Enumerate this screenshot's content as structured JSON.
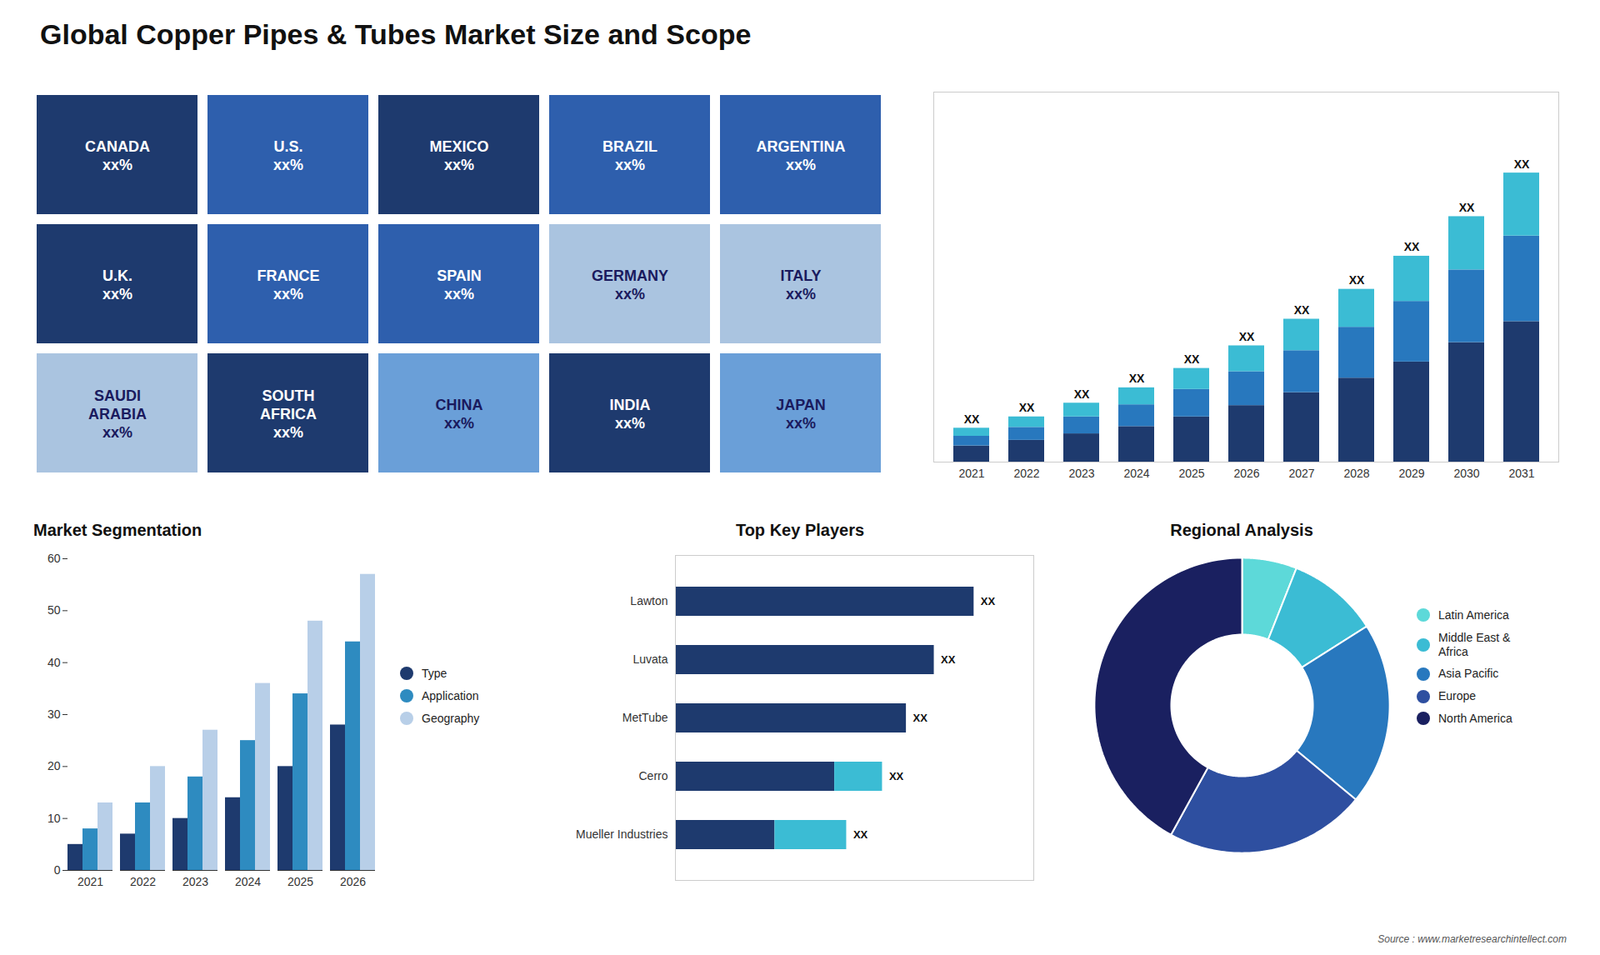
{
  "chart_data": [
    {
      "type": "map",
      "categories": [
        "CANADA\nxx%",
        "U.S.\nxx%",
        "MEXICO\nxx%",
        "BRAZIL\nxx%",
        "ARGENTINA\nxx%",
        "U.K.\nxx%",
        "FRANCE\nxx%",
        "SPAIN\nxx%",
        "GERMANY\nxx%",
        "ITALY\nxx%",
        "SAUDI\nARABIA\nxx%",
        "SOUTH\nAFRICA\nxx%",
        "CHINA\nxx%",
        "INDIA\nxx%",
        "JAPAN\nxx%"
      ],
      "colors": [
        "#1e3a6e",
        "#2e5fad",
        "#1e3a6e",
        "#2e5fad",
        "#2e5fad",
        "#1e3a6e",
        "#2e5fad",
        "#2e5fad",
        "#aac4e0",
        "#aac4e0",
        "#aac4e0",
        "#1e3a6e",
        "#6a9fd8",
        "#1e3a6e",
        "#6a9fd8"
      ]
    },
    {
      "type": "bar",
      "title": "Global Copper Pipes & Tubes Market Size and Scope",
      "stacked": true,
      "categories": [
        "2021",
        "2022",
        "2023",
        "2024",
        "2025",
        "2026",
        "2027",
        "2028",
        "2029",
        "2030",
        "2031"
      ],
      "series": [
        {
          "color": "#1e3a6e",
          "values": [
            1.0,
            1.35,
            1.75,
            2.2,
            2.8,
            3.5,
            4.3,
            5.2,
            6.2,
            7.4,
            8.7
          ]
        },
        {
          "color": "#2878be",
          "values": [
            0.6,
            0.8,
            1.05,
            1.35,
            1.7,
            2.1,
            2.6,
            3.15,
            3.75,
            4.5,
            5.3
          ]
        },
        {
          "color": "#3bbcd4",
          "values": [
            0.5,
            0.65,
            0.85,
            1.05,
            1.3,
            1.6,
            1.95,
            2.35,
            2.8,
            3.3,
            3.9
          ]
        }
      ],
      "total_labels": [
        "XX",
        "XX",
        "XX",
        "XX",
        "XX",
        "XX",
        "XX",
        "XX",
        "XX",
        "XX",
        "XX"
      ],
      "ylim": [
        0,
        22.912
      ],
      "tick_labels": "x",
      "grid": false,
      "annotations": [
        "Source : www.marketresearchintellect.com"
      ]
    },
    {
      "type": "bar",
      "title": "Market Segmentation",
      "categories": [
        "2021",
        "2022",
        "2023",
        "2024",
        "2025",
        "2026"
      ],
      "series": [
        {
          "name": "Type",
          "color": "#1e3a6e",
          "values": [
            5,
            7,
            10,
            14,
            20,
            28
          ]
        },
        {
          "name": "Application",
          "color": "#2e8bc0",
          "values": [
            8,
            13,
            18,
            25,
            34,
            44
          ]
        },
        {
          "name": "Geography",
          "color": "#b8cfe8",
          "values": [
            13,
            20,
            27,
            36,
            48,
            57
          ]
        }
      ],
      "ylim": [
        0,
        60
      ],
      "yticks": [
        0,
        10,
        20,
        30,
        40,
        50,
        60
      ],
      "legend": "right",
      "grid": false
    },
    {
      "type": "bar",
      "title": "Top Key Players",
      "orientation": "horizontal",
      "stacked": true,
      "categories": [
        "Lawton",
        "Luvata",
        "MetTube",
        "Cerro",
        "Mueller Industries"
      ],
      "series": [
        {
          "color": "#1e3a6e",
          "values": [
            75,
            65,
            58,
            40,
            25
          ]
        },
        {
          "color": "#3bbcd4",
          "values": [
            0,
            0,
            0,
            12,
            18
          ]
        }
      ],
      "total_labels": [
        "XX",
        "XX",
        "XX",
        "XX",
        "XX"
      ],
      "xlim": [
        0,
        90
      ],
      "tick_labels": "y",
      "grid": false
    },
    {
      "type": "donut",
      "title": "Regional Analysis",
      "categories": [
        "Latin America",
        "Middle East &\nAfrica",
        "Asia Pacific",
        "Europe",
        "North America"
      ],
      "values": [
        6,
        10,
        20,
        22,
        42
      ],
      "colors": [
        "#5dd9d9",
        "#3bbcd4",
        "#2878be",
        "#2e4fa0",
        "#1a2060"
      ],
      "legend": "right"
    }
  ]
}
